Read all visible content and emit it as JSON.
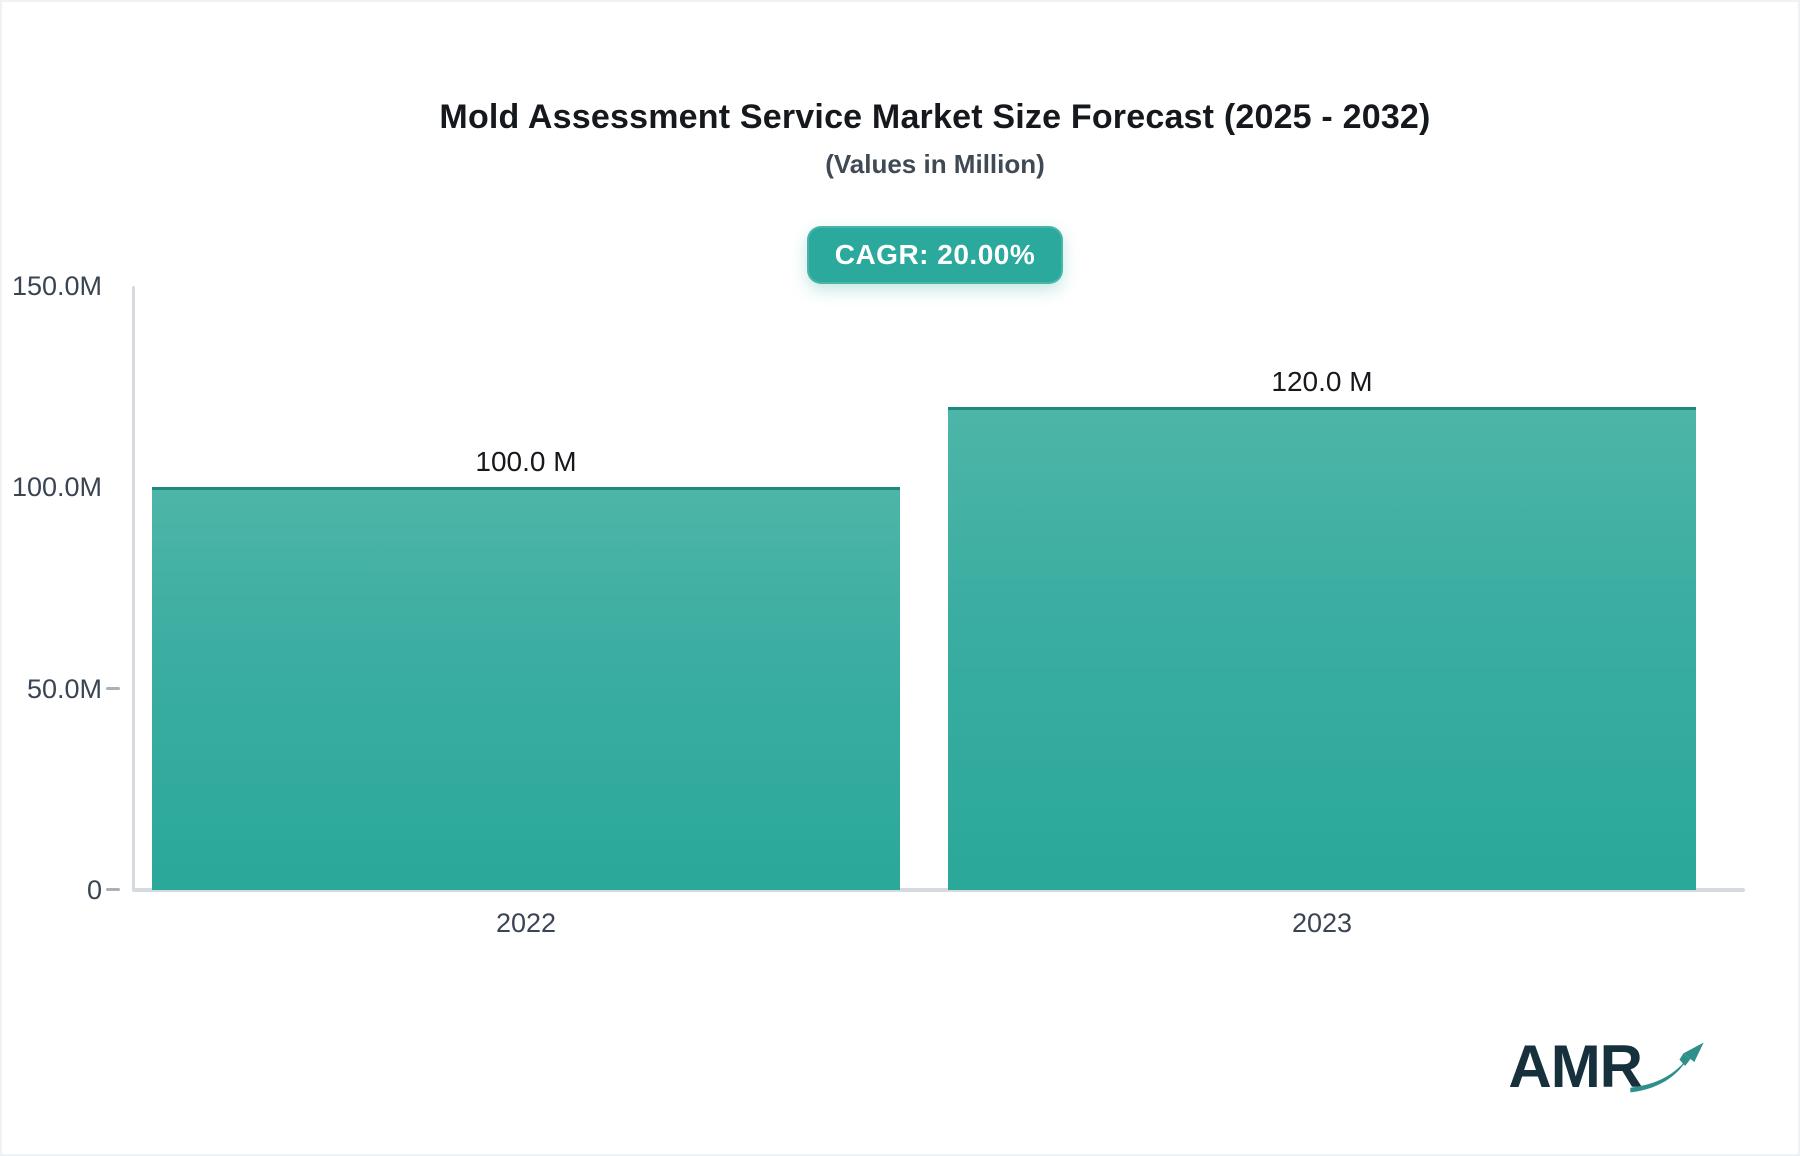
{
  "header": {
    "title": "Mold Assessment Service Market Size Forecast (2025 - 2032)",
    "subtitle": "(Values in Million)",
    "cagr_badge": "CAGR: 20.00%"
  },
  "logo": {
    "text": "AMR",
    "icon": "growth-arrow-icon"
  },
  "colors": {
    "accent_teal": "#2aa99c",
    "bar_gradient_top": "#4db5a8",
    "bar_gradient_bottom": "#2aa89a",
    "bar_top_cap": "#1a8a80",
    "axis_line": "#d5dae1",
    "axis_text": "#3a4553",
    "title_text": "#15181c",
    "badge_text": "#ffffff",
    "logo_navy": "#16303c",
    "logo_arrow_teal": "#2e8f8b"
  },
  "chart_data": {
    "type": "bar",
    "title": "Mold Assessment Service Market Size Forecast (2025 - 2032)",
    "subtitle": "(Values in Million)",
    "cagr_label": "CAGR: 20.00%",
    "cagr_percent": 20.0,
    "categories": [
      "2022",
      "2023"
    ],
    "values": [
      100.0,
      120.0
    ],
    "bar_labels": [
      "100.0 M",
      "120.0 M"
    ],
    "unit": "Million",
    "xlabel": "",
    "ylabel": "",
    "ylim": [
      0,
      150
    ],
    "yticks": [
      {
        "value": 150,
        "label": "150.0M",
        "dash": false
      },
      {
        "value": 100,
        "label": "100.0M",
        "dash": false
      },
      {
        "value": 50,
        "label": "50.0M",
        "dash": true
      },
      {
        "value": 0,
        "label": "0",
        "dash": true
      }
    ],
    "grid": false,
    "legend": false,
    "bar_orientation": "vertical"
  }
}
